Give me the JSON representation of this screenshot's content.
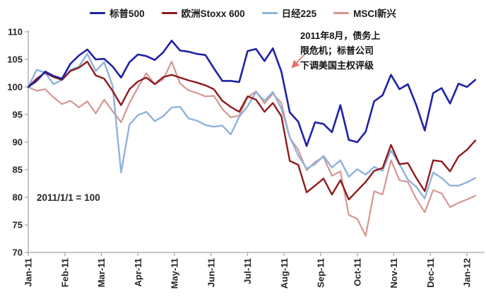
{
  "note": "2011/1/1 = 100",
  "annotation": {
    "lines": [
      "2011年8月，债务上",
      "限危机；标普公司",
      "下调美国主权评级"
    ],
    "arrow_color": "#e4726b"
  },
  "style": {
    "axis_color": "#a6a6a6",
    "label_color": "#262626"
  },
  "chart_data": {
    "type": "line",
    "title": "",
    "xlabel": "",
    "ylabel": "",
    "baseline_note": "2011/1/1 = 100",
    "legend_position": "top",
    "grid": false,
    "sampling": "weekly points, Jan 2011 through early Jan 2012",
    "x_axis": {
      "labels": [
        "Jan-11",
        "Feb-11",
        "Mar-11",
        "Apr-11",
        "May-11",
        "Jun-11",
        "Jul-11",
        "Aug-11",
        "Sep-11",
        "Oct-11",
        "Nov-11",
        "Dec-11",
        "Jan-12"
      ]
    },
    "y_axis": {
      "min": 70,
      "max": 110,
      "ticks": [
        70,
        75,
        80,
        85,
        90,
        95,
        100,
        105,
        110
      ]
    },
    "series": [
      {
        "name": "标普500",
        "id": "sp500",
        "color": "#1f22a5",
        "width": 2.6,
        "values": [
          100,
          101.1,
          102.8,
          102.0,
          101.5,
          104.2,
          105.7,
          106.8,
          105.0,
          105.1,
          103.7,
          101.7,
          104.5,
          105.9,
          105.6,
          104.9,
          106.3,
          108.4,
          106.6,
          106.4,
          106.0,
          105.8,
          103.4,
          101.1,
          101.1,
          100.9,
          106.5,
          106.9,
          104.7,
          107.0,
          102.8,
          95.4,
          93.7,
          89.3,
          93.6,
          93.3,
          91.8,
          96.7,
          90.4,
          90.0,
          91.9,
          97.4,
          98.5,
          102.2,
          99.6,
          100.5,
          96.7,
          92.1,
          98.9,
          99.8,
          97.0,
          100.6,
          100.0,
          101.3
        ]
      },
      {
        "name": "欧洲Stoxx 600",
        "id": "stoxx600",
        "color": "#8e1b1e",
        "width": 2.4,
        "values": [
          100,
          101.5,
          102.6,
          101.8,
          101.3,
          102.9,
          103.5,
          104.6,
          102.1,
          101.5,
          99.3,
          96.7,
          99.6,
          101.0,
          101.7,
          100.5,
          101.8,
          102.2,
          101.7,
          101.2,
          100.8,
          100.3,
          99.6,
          97.5,
          96.4,
          95.5,
          98.3,
          97.7,
          95.5,
          97.1,
          94.7,
          86.6,
          85.9,
          80.9,
          82.1,
          83.4,
          80.5,
          83.1,
          79.6,
          81.2,
          82.8,
          84.8,
          85.3,
          89.5,
          86.0,
          86.2,
          83.5,
          81.1,
          86.7,
          86.5,
          84.7,
          87.4,
          88.6,
          90.3
        ]
      },
      {
        "name": "日经225",
        "id": "nikkei225",
        "color": "#8fb3dc",
        "width": 2.4,
        "values": [
          100,
          103.1,
          102.6,
          100.5,
          101.3,
          103.1,
          103.7,
          106.0,
          102.9,
          104.5,
          100.2,
          84.5,
          93.2,
          94.9,
          95.5,
          93.8,
          94.7,
          96.3,
          96.4,
          94.3,
          93.9,
          93.1,
          92.8,
          93.0,
          91.4,
          94.6,
          96.5,
          99.1,
          97.5,
          99.1,
          96.1,
          90.9,
          87.6,
          85.2,
          86.0,
          87.5,
          85.4,
          86.7,
          83.7,
          85.1,
          84.1,
          85.5,
          84.8,
          88.5,
          86.0,
          83.2,
          81.9,
          79.8,
          84.5,
          83.5,
          82.1,
          82.1,
          82.7,
          83.5
        ]
      },
      {
        "name": "MSCI新兴",
        "id": "msci-em",
        "color": "#d59693",
        "width": 2.2,
        "values": [
          100,
          99.3,
          99.6,
          98.1,
          96.9,
          97.5,
          96.3,
          97.4,
          95.2,
          97.7,
          95.6,
          93.6,
          97.1,
          99.9,
          102.5,
          100.5,
          101.4,
          104.6,
          100.6,
          99.4,
          98.9,
          98.3,
          98.4,
          96.0,
          94.5,
          94.8,
          98.1,
          99.2,
          97.0,
          98.8,
          97.1,
          90.8,
          88.6,
          84.9,
          86.4,
          87.3,
          83.9,
          84.7,
          76.8,
          76.1,
          73.0,
          81.1,
          80.5,
          86.7,
          83.1,
          82.8,
          79.7,
          77.3,
          81.3,
          80.7,
          78.2,
          79.0,
          79.6,
          80.3
        ]
      }
    ]
  }
}
